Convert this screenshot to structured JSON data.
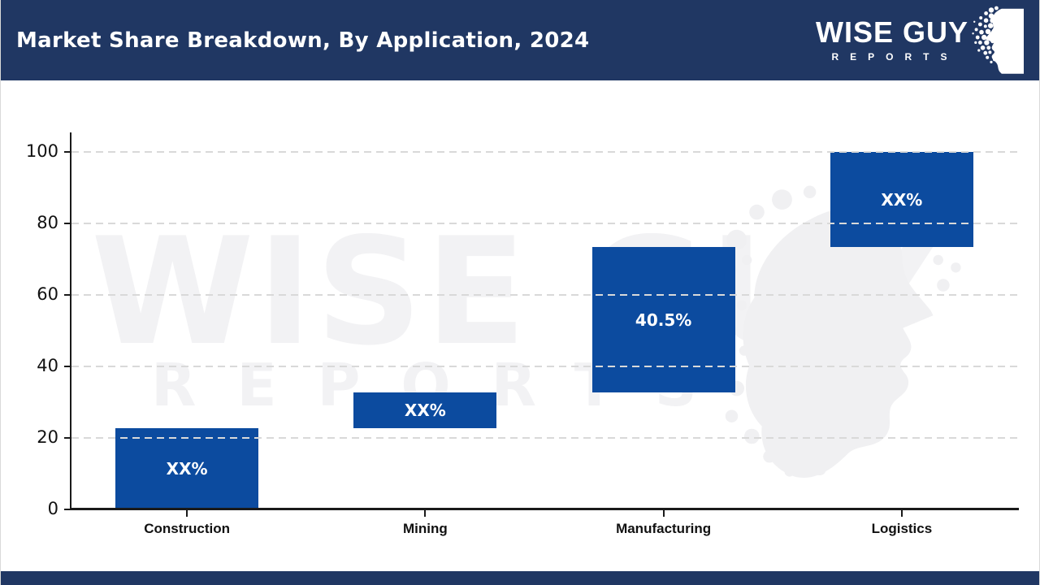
{
  "header": {
    "title": "Market Share Breakdown, By Application, 2024",
    "logo": {
      "brand": "WISE GUY",
      "sub": "REPORTS"
    }
  },
  "watermark": {
    "brand": "WISE GUY",
    "sub": "REPORTS"
  },
  "chart_data": {
    "type": "bar",
    "subtype": "floating-waterfall",
    "title": "Market Share Breakdown, By Application, 2024",
    "categories": [
      "Construction",
      "Mining",
      "Manufacturing",
      "Logistics"
    ],
    "segments": [
      {
        "category": "Construction",
        "start": 0,
        "end": 22.8,
        "value": 22.8,
        "label": "XX%"
      },
      {
        "category": "Mining",
        "start": 22.8,
        "end": 32.8,
        "value": 10.0,
        "label": "XX%"
      },
      {
        "category": "Manufacturing",
        "start": 32.8,
        "end": 73.3,
        "value": 40.5,
        "label": "40.5%"
      },
      {
        "category": "Logistics",
        "start": 73.3,
        "end": 100,
        "value": 26.7,
        "label": "XX%"
      }
    ],
    "ylim": [
      0,
      100
    ],
    "yticks": [
      0,
      20,
      40,
      60,
      80,
      100
    ],
    "xlabel": "",
    "ylabel": "",
    "grid": "horizontal-dashed",
    "legend": "none",
    "bar_color": "#0c4b9f",
    "label_color": "#ffffff"
  },
  "colors": {
    "header_bg": "#203763",
    "footer_bg": "#203763",
    "bar": "#0c4b9f",
    "grid": "#d9d9d9",
    "axis": "#1a1a1a",
    "watermark": "#f1f1f3",
    "title_text": "#ffffff"
  }
}
